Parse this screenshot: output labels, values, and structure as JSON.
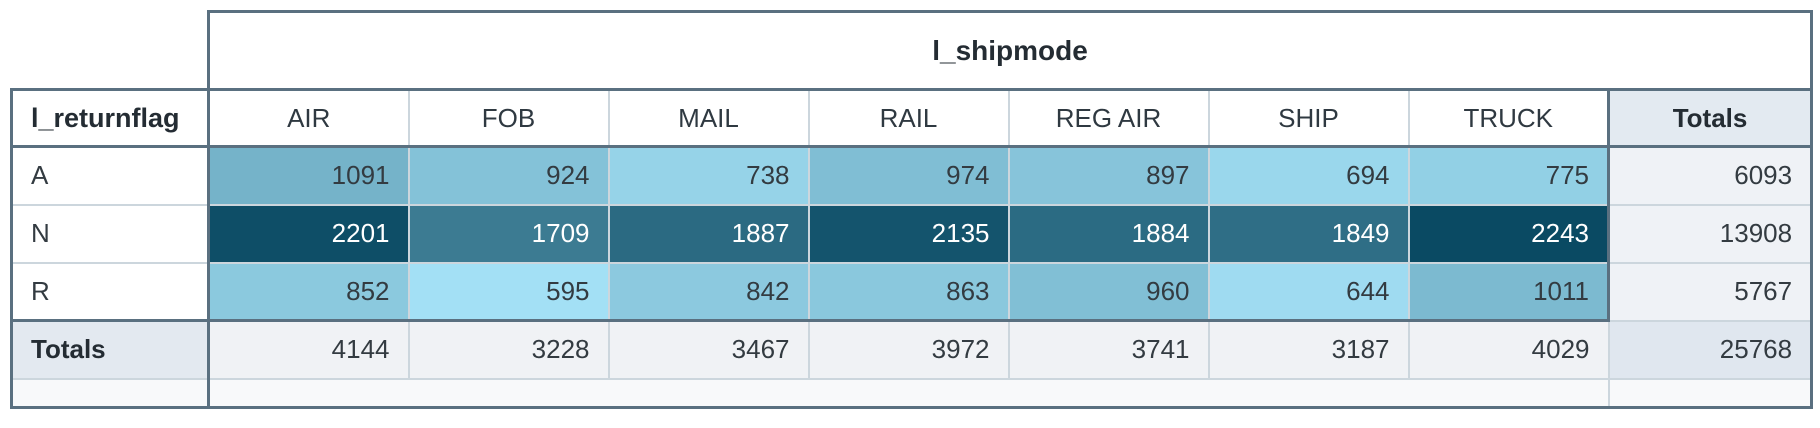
{
  "pivot": {
    "column_group": {
      "label": "l_shipmode"
    },
    "row_group": {
      "label": "l_returnflag"
    },
    "totals_column_label": "Totals",
    "totals_row_label": "Totals",
    "columns": [
      "AIR",
      "FOB",
      "MAIL",
      "RAIL",
      "REG AIR",
      "SHIP",
      "TRUCK"
    ],
    "rows": [
      {
        "label": "A",
        "cells": [
          {
            "value": "1091",
            "bg": "#75b3c9",
            "fg": "#333b41"
          },
          {
            "value": "924",
            "bg": "#84c2d8",
            "fg": "#333b41"
          },
          {
            "value": "738",
            "bg": "#96d3e8",
            "fg": "#333b41"
          },
          {
            "value": "974",
            "bg": "#80bed4",
            "fg": "#333b41"
          },
          {
            "value": "897",
            "bg": "#87c4da",
            "fg": "#333b41"
          },
          {
            "value": "694",
            "bg": "#9ad7ec",
            "fg": "#333b41"
          },
          {
            "value": "775",
            "bg": "#92d0e5",
            "fg": "#333b41"
          }
        ],
        "total": "6093"
      },
      {
        "label": "N",
        "cells": [
          {
            "value": "2201",
            "bg": "#0e4e67",
            "fg": "#ffffff"
          },
          {
            "value": "1709",
            "bg": "#3c7b92",
            "fg": "#ffffff"
          },
          {
            "value": "1887",
            "bg": "#2b6a82",
            "fg": "#ffffff"
          },
          {
            "value": "2135",
            "bg": "#14546d",
            "fg": "#ffffff"
          },
          {
            "value": "1884",
            "bg": "#2b6b83",
            "fg": "#ffffff"
          },
          {
            "value": "1849",
            "bg": "#2f6e86",
            "fg": "#ffffff"
          },
          {
            "value": "2243",
            "bg": "#0a4a63",
            "fg": "#ffffff"
          }
        ],
        "total": "13908"
      },
      {
        "label": "R",
        "cells": [
          {
            "value": "852",
            "bg": "#8bc9de",
            "fg": "#333b41"
          },
          {
            "value": "595",
            "bg": "#a3e0f5",
            "fg": "#333b41"
          },
          {
            "value": "842",
            "bg": "#8cc9df",
            "fg": "#333b41"
          },
          {
            "value": "863",
            "bg": "#8ac8dd",
            "fg": "#333b41"
          },
          {
            "value": "960",
            "bg": "#81bfd5",
            "fg": "#333b41"
          },
          {
            "value": "644",
            "bg": "#9fdbf1",
            "fg": "#333b41"
          },
          {
            "value": "1011",
            "bg": "#7cbad0",
            "fg": "#333b41"
          }
        ],
        "total": "5767"
      }
    ],
    "totals_row": {
      "cells": [
        "4144",
        "3228",
        "3467",
        "3972",
        "3741",
        "3187",
        "4029"
      ],
      "grand_total": "25768"
    }
  },
  "colors": {
    "border_dark": "#5a7080",
    "border_light": "#ccd6dd",
    "totals_col_header_bg": "#e3eaf1",
    "row_totals_bg": "#eff2f6",
    "totals_row_bg": "#f0f2f5",
    "totals_row_label_bg": "#e3e9f0",
    "grand_total_bg": "#e0e7ef",
    "footer_bg": "#f8f9fa",
    "heatmap_min_color": "#a3e0f5",
    "heatmap_max_color": "#0a4a63"
  },
  "chart_data": {
    "type": "heatmap",
    "title": "",
    "x_dimension": "l_shipmode",
    "y_dimension": "l_returnflag",
    "x_categories": [
      "AIR",
      "FOB",
      "MAIL",
      "RAIL",
      "REG AIR",
      "SHIP",
      "TRUCK"
    ],
    "y_categories": [
      "A",
      "N",
      "R"
    ],
    "values": [
      [
        1091,
        924,
        738,
        974,
        897,
        694,
        775
      ],
      [
        2201,
        1709,
        1887,
        2135,
        1884,
        1849,
        2243
      ],
      [
        852,
        595,
        842,
        863,
        960,
        644,
        1011
      ]
    ],
    "row_totals": [
      6093,
      13908,
      5767
    ],
    "column_totals": [
      4144,
      3228,
      3467,
      3972,
      3741,
      3187,
      4029
    ],
    "grand_total": 25768,
    "color_scale": {
      "min_value": 595,
      "max_value": 2243,
      "min_color": "#a3e0f5",
      "max_color": "#0a4a63"
    }
  }
}
